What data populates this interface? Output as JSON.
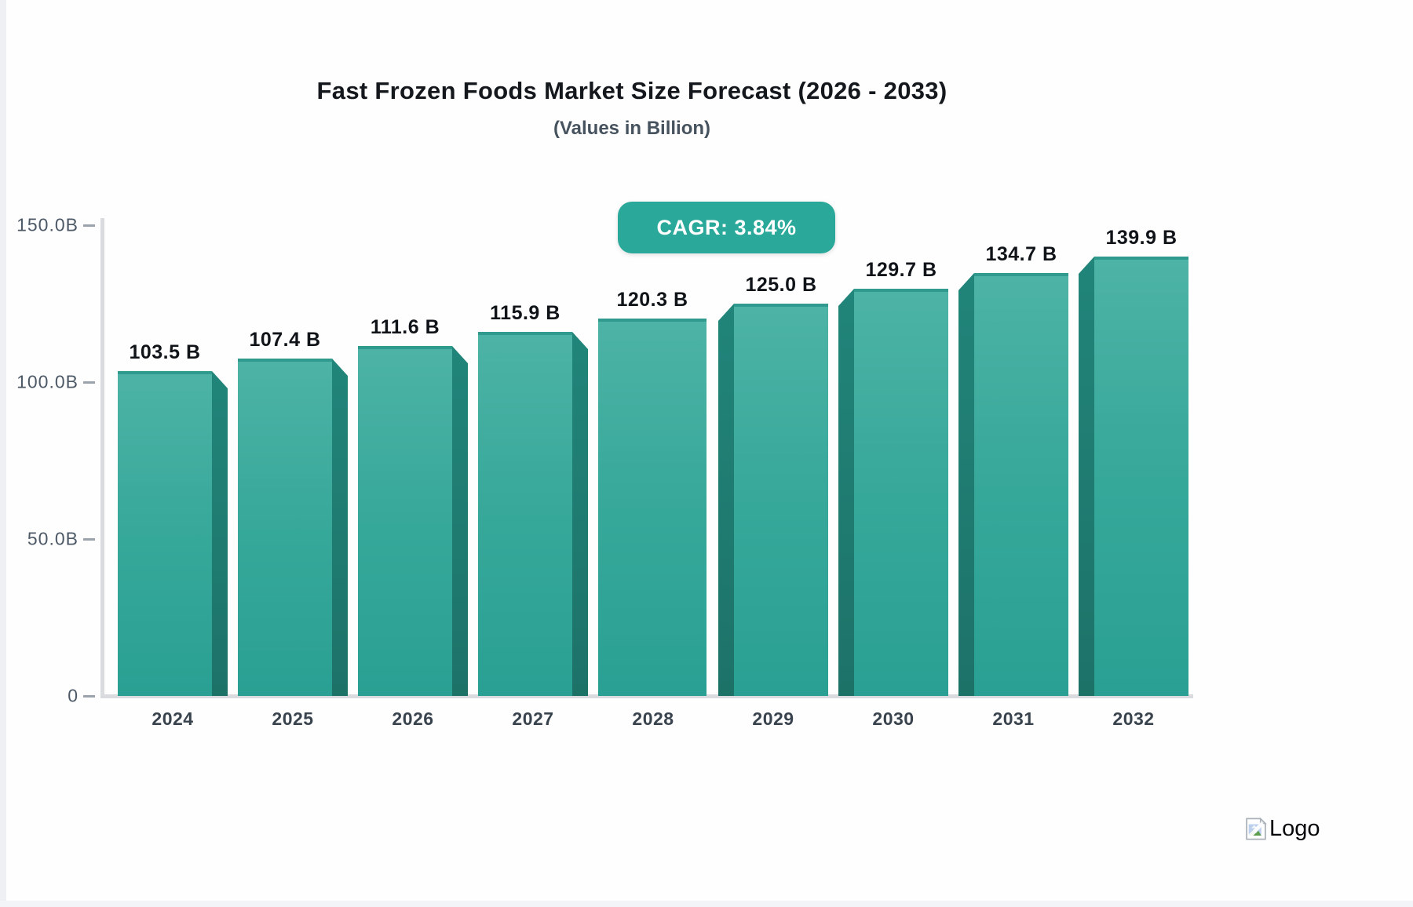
{
  "header": {
    "title": "Fast Frozen Foods Market Size Forecast (2026 - 2033)",
    "subtitle": "(Values in Billion)",
    "cagr_badge": "CAGR: 3.84%"
  },
  "chart_data": {
    "type": "bar",
    "title": "Fast Frozen Foods Market Size Forecast (2026 - 2033)",
    "subtitle": "(Values in Billion)",
    "annotation": "CAGR: 3.84%",
    "categories": [
      "2024",
      "2025",
      "2026",
      "2027",
      "2028",
      "2029",
      "2030",
      "2031",
      "2032"
    ],
    "values": [
      103.5,
      107.4,
      111.6,
      115.9,
      120.3,
      125.0,
      129.7,
      134.7,
      139.9
    ],
    "value_labels": [
      "103.5 B",
      "107.4 B",
      "111.6 B",
      "115.9 B",
      "120.3 B",
      "125.0 B",
      "129.7 B",
      "134.7 B",
      "139.9 B"
    ],
    "unit": "Billion",
    "y_ticks": [
      {
        "label": "150.0B",
        "value": 150
      },
      {
        "label": "100.0B",
        "value": 100
      },
      {
        "label": "50.0B",
        "value": 50
      },
      {
        "label": "0",
        "value": 0
      }
    ],
    "ylim": [
      0,
      150
    ],
    "xlabel": "",
    "ylabel": "",
    "grid": false,
    "legend": false,
    "colors": {
      "bar_face_top": "#4db3a6",
      "bar_face_bottom": "#29a093",
      "bar_top_edge": "#2f9a8d",
      "bar_side": "#1e7c71",
      "badge_background": "#2aa99a",
      "badge_text": "#ffffff",
      "axis_line": "#d9dbdf",
      "tick_text": "#4d5966",
      "category_text": "#39434e",
      "value_text": "#101419"
    }
  },
  "footer": {
    "logo_alt": "Logo"
  }
}
